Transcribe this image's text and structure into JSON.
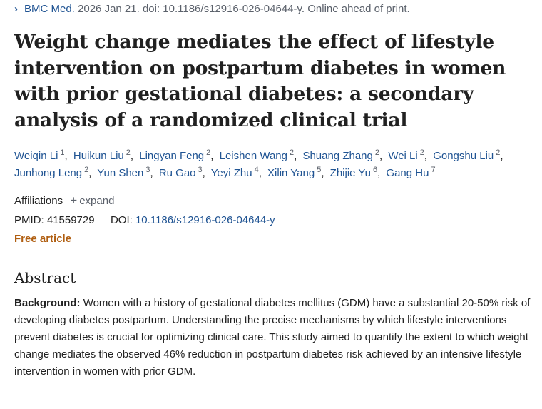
{
  "citation": {
    "journal": "BMC Med.",
    "details": "2026 Jan 21. doi: 10.1186/s12916-026-04644-y. Online ahead of print."
  },
  "title": "Weight change mediates the effect of lifestyle intervention on postpartum diabetes in women with prior gestational diabetes: a secondary analysis of a randomized clinical trial",
  "authors": [
    {
      "name": "Weiqin Li",
      "aff": "1"
    },
    {
      "name": "Huikun Liu",
      "aff": "2"
    },
    {
      "name": "Lingyan Feng",
      "aff": "2"
    },
    {
      "name": "Leishen Wang",
      "aff": "2"
    },
    {
      "name": "Shuang Zhang",
      "aff": "2"
    },
    {
      "name": "Wei Li",
      "aff": "2"
    },
    {
      "name": "Gongshu Liu",
      "aff": "2"
    },
    {
      "name": "Junhong Leng",
      "aff": "2"
    },
    {
      "name": "Yun Shen",
      "aff": "3"
    },
    {
      "name": "Ru Gao",
      "aff": "3"
    },
    {
      "name": "Yeyi Zhu",
      "aff": "4"
    },
    {
      "name": "Xilin Yang",
      "aff": "5"
    },
    {
      "name": "Zhijie Yu",
      "aff": "6"
    },
    {
      "name": "Gang Hu",
      "aff": "7"
    }
  ],
  "affiliations": {
    "label": "Affiliations",
    "expand": "expand"
  },
  "ids": {
    "pmid_label": "PMID:",
    "pmid": "41559729",
    "doi_label": "DOI:",
    "doi": "10.1186/s12916-026-04644-y"
  },
  "free_article": "Free article",
  "abstract": {
    "heading": "Abstract",
    "background_label": "Background:",
    "background_text": "Women with a history of gestational diabetes mellitus (GDM) have a substantial 20-50% risk of developing diabetes postpartum. Understanding the precise mechanisms by which lifestyle interventions prevent diabetes is crucial for optimizing clinical care. This study aimed to quantify the extent to which weight change mediates the observed 46% reduction in postpartum diabetes risk achieved by an intensive lifestyle intervention in women with prior GDM."
  },
  "colors": {
    "link": "#205493",
    "free": "#b05f12",
    "muted": "#5b616b"
  }
}
